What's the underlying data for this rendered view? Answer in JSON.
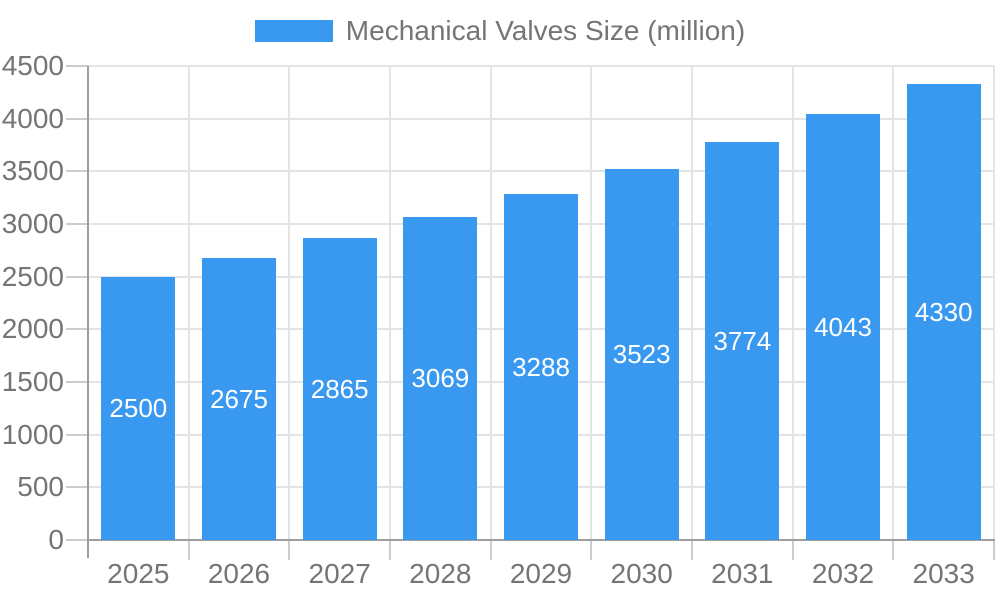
{
  "chart_data": {
    "type": "bar",
    "title": "",
    "legend_label": "Mechanical Valves Size (million)",
    "legend_position": "top-center",
    "categories": [
      "2025",
      "2026",
      "2027",
      "2028",
      "2029",
      "2030",
      "2031",
      "2032",
      "2033"
    ],
    "series": [
      {
        "name": "Mechanical Valves Size (million)",
        "values": [
          2500,
          2675,
          2865,
          3069,
          3288,
          3523,
          3774,
          4043,
          4330
        ]
      }
    ],
    "xlabel": "",
    "ylabel": "",
    "ylim": [
      0,
      4500
    ],
    "ytick_step": 500,
    "ytick_labels": [
      "0",
      "500",
      "1000",
      "1500",
      "2000",
      "2500",
      "3000",
      "3500",
      "4000",
      "4500"
    ],
    "grid": true,
    "bar_value_labels": "inside-center",
    "colors": {
      "bar": "#3999F0",
      "bar_label_text": "#FFFFFF",
      "axis_line": "#9E9E9E",
      "gridline": "#E4E4E4",
      "tick": "#CCCCCC",
      "tick_label_text": "#757575",
      "legend_text": "#757575",
      "background": "#FFFFFF"
    }
  }
}
